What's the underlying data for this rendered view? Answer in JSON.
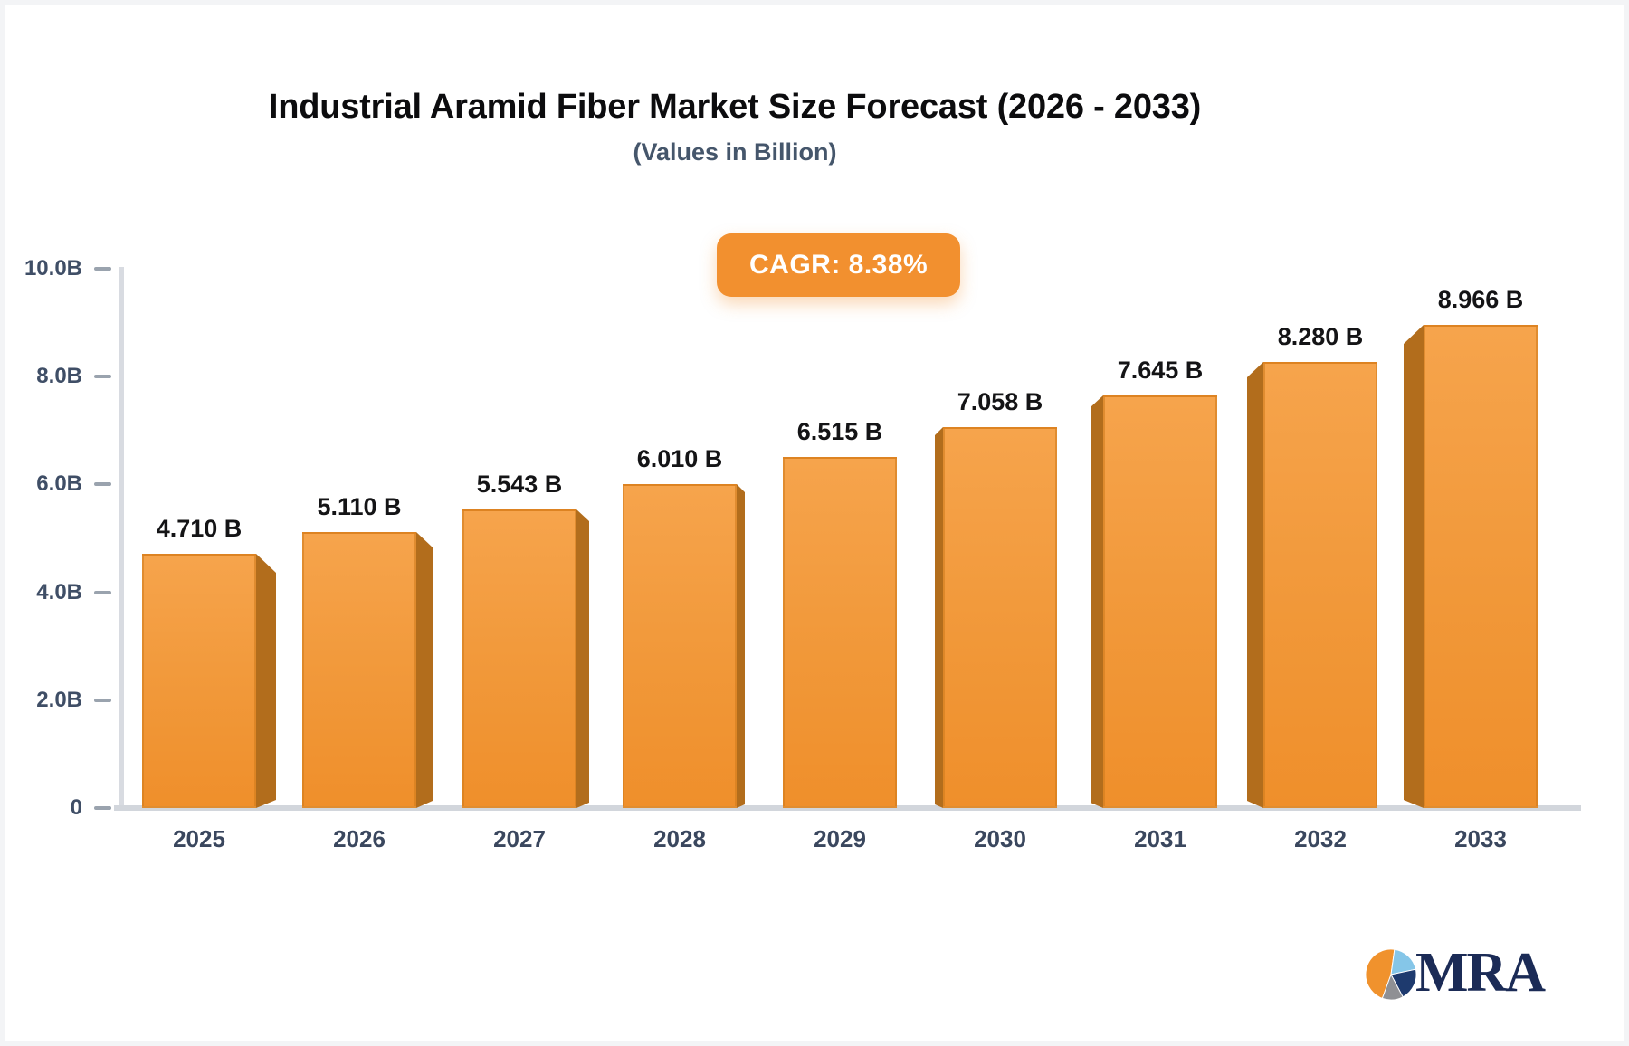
{
  "header": {
    "title": "Industrial Aramid Fiber Market Size Forecast (2026 - 2033)",
    "subtitle": "(Values in Billion)",
    "cagr_badge": "CAGR: 8.38%"
  },
  "branding": {
    "logo_text": "MRA"
  },
  "chart_data": {
    "type": "bar",
    "title": "Industrial Aramid Fiber Market Size Forecast (2026 - 2033)",
    "subtitle": "(Values in Billion)",
    "annotation": "CAGR: 8.38%",
    "categories": [
      "2025",
      "2026",
      "2027",
      "2028",
      "2029",
      "2030",
      "2031",
      "2032",
      "2033"
    ],
    "values": [
      4.71,
      5.11,
      5.543,
      6.01,
      6.515,
      7.058,
      7.645,
      8.28,
      8.966
    ],
    "bar_labels": [
      "4.710 B",
      "5.110 B",
      "5.543 B",
      "6.010 B",
      "6.515 B",
      "7.058 B",
      "7.645 B",
      "8.280 B",
      "8.966 B"
    ],
    "ylim": [
      0,
      10
    ],
    "ytick_values": [
      10,
      8,
      6,
      4,
      2,
      0
    ],
    "ytick_labels": [
      "10.0B",
      "8.0B",
      "6.0B",
      "4.0B",
      "2.0B",
      "0"
    ],
    "xlabel": "",
    "ylabel": "",
    "grid": false,
    "legend": "none",
    "bar_style": {
      "face_top": "#F6A44C",
      "face_bottom": "#EF8F2B",
      "side": "#B26D1C",
      "label_color": "#141416"
    }
  },
  "colors": {
    "accent_orange": "#F2902F",
    "axis_line": "#D5D9DF",
    "tick_text": "#3F4E66",
    "category_text": "#3A475E",
    "logo_navy": "#1B2B56",
    "logo_lightblue": "#85C6E8",
    "logo_gray": "#8F9094"
  }
}
